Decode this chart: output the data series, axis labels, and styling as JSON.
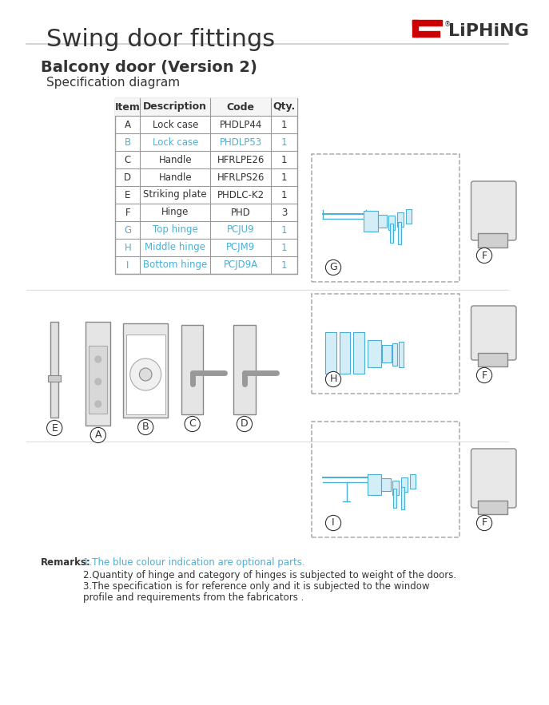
{
  "title_main": "Swing door fittings",
  "title_sub": "Balcony door (Version 2)",
  "title_spec": "Specification diagram",
  "logo_text": "LiPHiNG",
  "table_headers": [
    "Item",
    "Description",
    "Code",
    "Qty."
  ],
  "table_rows": [
    [
      "A",
      "Lock case",
      "PHDLP44",
      "1",
      "black"
    ],
    [
      "B",
      "Lock case",
      "PHDLP53",
      "1",
      "blue"
    ],
    [
      "C",
      "Handle",
      "HFRLPE26",
      "1",
      "black"
    ],
    [
      "D",
      "Handle",
      "HFRLPS26",
      "1",
      "black"
    ],
    [
      "E",
      "Striking plate",
      "PHDLC-K2",
      "1",
      "black"
    ],
    [
      "F",
      "Hinge",
      "PHD",
      "3",
      "black"
    ],
    [
      "G",
      "Top hinge",
      "PCJU9",
      "1",
      "blue"
    ],
    [
      "H",
      "Middle hinge",
      "PCJM9",
      "1",
      "blue"
    ],
    [
      "I",
      "Bottom hinge",
      "PCJD9A",
      "1",
      "blue"
    ]
  ],
  "remark_blue": "1.The blue colour indication are optional parts.",
  "remark_black1": "2.Quantity of hinge and category of hinges is subjected to weight of the doors.",
  "remark_black2": "3.The specification is for reference only and it is subjected to the window",
  "remark_black3": "profile and requirements from the fabricators .",
  "blue_color": "#4aafd6",
  "dark_gray": "#333333",
  "light_gray": "#888888",
  "bg_color": "#ffffff",
  "header_line_color": "#cccccc",
  "table_border_color": "#aaaaaa",
  "red_color": "#cc0000"
}
